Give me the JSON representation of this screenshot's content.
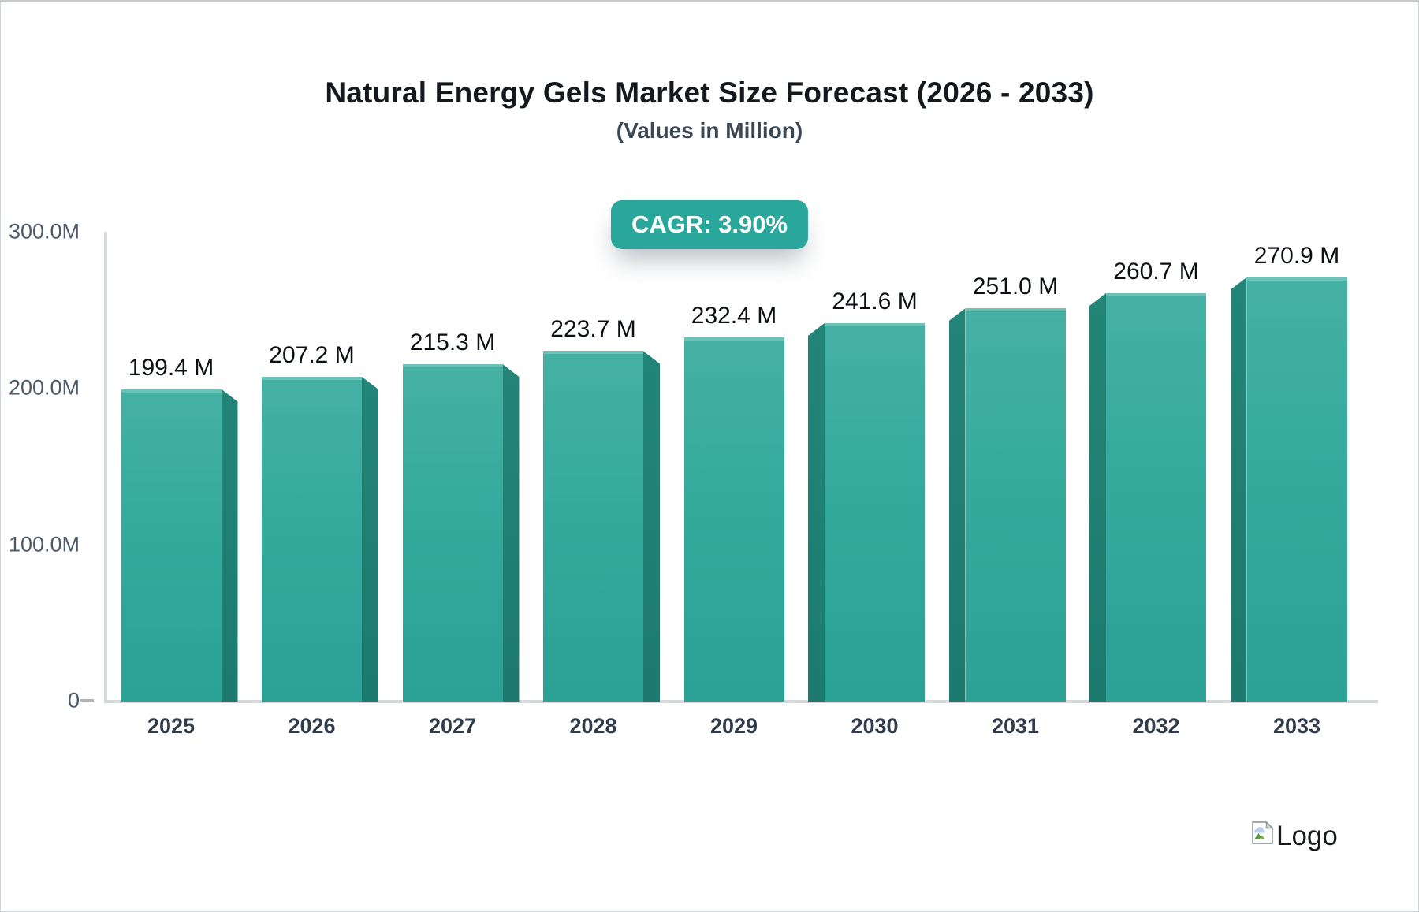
{
  "header": {
    "title": "Natural Energy Gels Market Size Forecast (2026 - 2033)",
    "subtitle": "(Values in Million)",
    "cagr_label": "CAGR: 3.90%"
  },
  "chart_data": {
    "type": "bar",
    "title": "Natural Energy Gels Market Size Forecast (2026 - 2033)",
    "subtitle": "(Values in Million)",
    "cagr_label": "CAGR: 3.90%",
    "unit": "Million",
    "categories": [
      "2025",
      "2026",
      "2027",
      "2028",
      "2029",
      "2030",
      "2031",
      "2032",
      "2033"
    ],
    "values": [
      199.4,
      207.2,
      215.3,
      223.7,
      232.4,
      241.6,
      251.0,
      260.7,
      270.9
    ],
    "value_labels": [
      "199.4 M",
      "207.2 M",
      "215.3 M",
      "223.7 M",
      "232.4 M",
      "241.6 M",
      "251.0 M",
      "260.7 M",
      "270.9 M"
    ],
    "y_ticks": [
      {
        "label": "300.0M",
        "value": 300
      },
      {
        "label": "200.0M",
        "value": 200
      },
      {
        "label": "100.0M",
        "value": 100
      },
      {
        "label": "0",
        "value": 0
      }
    ],
    "ylim": [
      0,
      300
    ],
    "xlabel": "",
    "ylabel": "",
    "grid": false,
    "legend": "none",
    "bar_color": "#2fa89b",
    "bar_side_color": "#1d7c70",
    "badge_color": "#2aa79b",
    "style": "3d-perspective-bars"
  },
  "footer": {
    "logo_text": "Logo",
    "logo_icon": "broken-image-icon"
  }
}
